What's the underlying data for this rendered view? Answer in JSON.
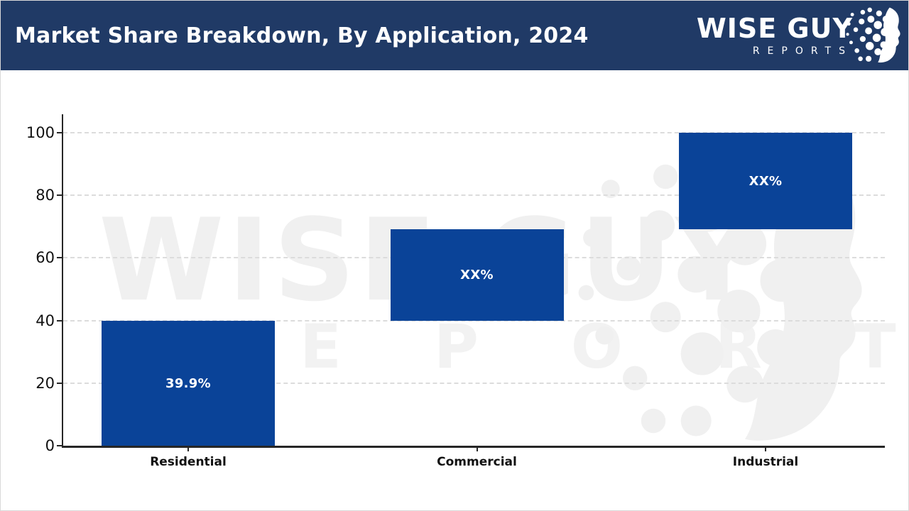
{
  "header": {
    "title": "Market Share Breakdown, By Application, 2024",
    "background_color": "#203a66",
    "logo": {
      "line1": "WISE GUY",
      "line2": "REPORTS",
      "icon": "face-profile-dots"
    }
  },
  "watermark": {
    "line1": "WISE GUY",
    "line2": "R E P O R T S",
    "icon": "face-profile-dots",
    "color": "#f0f0f0"
  },
  "chart_data": {
    "type": "bar",
    "subtype": "floating-range-waterfall",
    "title": "Market Share Breakdown, By Application, 2024",
    "categories": [
      "Residential",
      "Commercial",
      "Industrial"
    ],
    "segments": [
      {
        "category": "Residential",
        "start": 0,
        "end": 39.9,
        "label": "39.9%"
      },
      {
        "category": "Commercial",
        "start": 39.9,
        "end": 69.1,
        "label": "XX%"
      },
      {
        "category": "Industrial",
        "start": 69.1,
        "end": 100,
        "label": "XX%"
      }
    ],
    "xlabel": "",
    "ylabel": "",
    "yticks": [
      0,
      20,
      40,
      60,
      80,
      100
    ],
    "ylim": [
      0,
      100
    ],
    "grid": "horizontal-dashed",
    "legend": "none",
    "bar_color": "#0a4398",
    "bar_label_color": "#ffffff",
    "axis_color": "#262626",
    "gridline_color": "#dcdcdc"
  }
}
